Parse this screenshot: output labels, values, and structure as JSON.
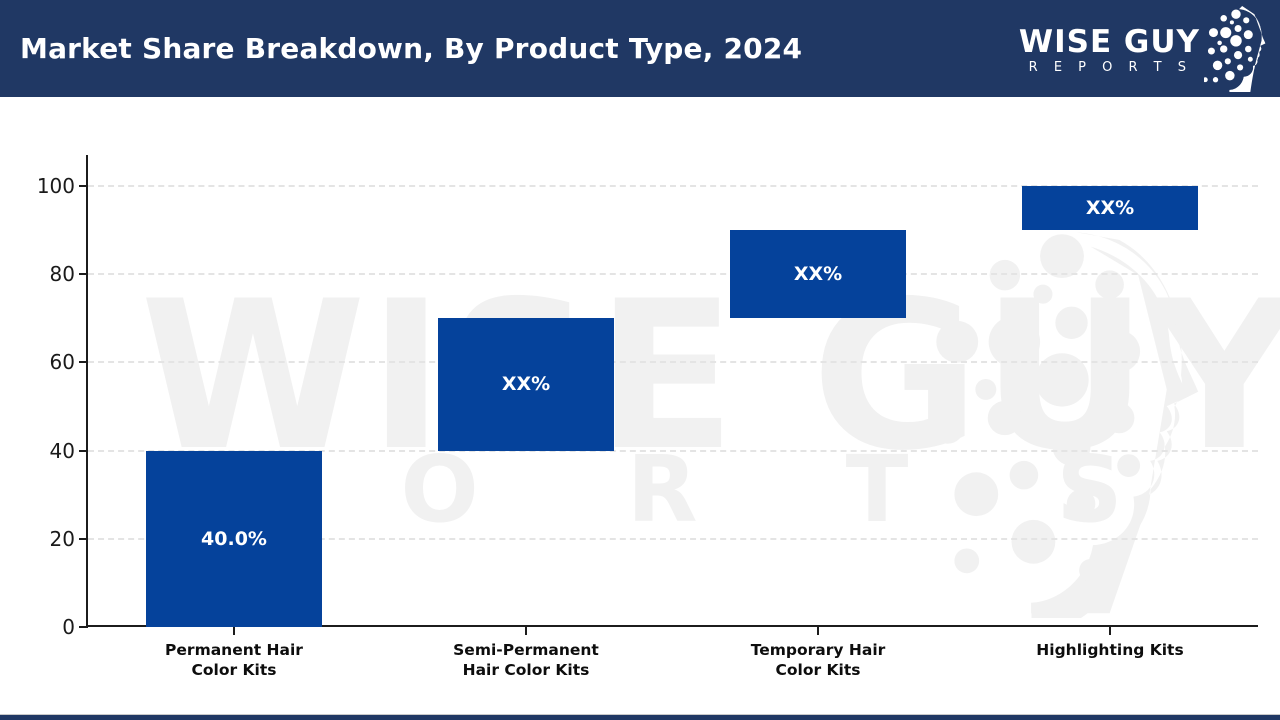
{
  "header": {
    "title": "Market Share Breakdown, By Product Type, 2024",
    "logo_line1": "WISE GUY",
    "logo_line2": "R E P O R T S"
  },
  "watermark": {
    "line1": "WISE GUY",
    "line2": "P O R T S"
  },
  "chart_data": {
    "type": "bar",
    "subtype": "waterfall",
    "title": "Market Share Breakdown, By Product Type, 2024",
    "categories": [
      "Permanent Hair Color Kits",
      "Semi-Permanent Hair Color Kits",
      "Temporary Hair Color Kits",
      "Highlighting Kits"
    ],
    "category_lines": [
      [
        "Permanent Hair",
        "Color Kits"
      ],
      [
        "Semi-Permanent",
        "Hair Color Kits"
      ],
      [
        "Temporary Hair",
        "Color Kits"
      ],
      [
        "Highlighting Kits"
      ]
    ],
    "segments": [
      {
        "label": "40.0%",
        "start": 0,
        "end": 40
      },
      {
        "label": "XX%",
        "start": 40,
        "end": 70
      },
      {
        "label": "XX%",
        "start": 70,
        "end": 90
      },
      {
        "label": "XX%",
        "start": 90,
        "end": 100
      }
    ],
    "yticks": [
      0,
      20,
      40,
      60,
      80,
      100
    ],
    "ylim": [
      0,
      100
    ],
    "xlabel": "",
    "ylabel": "",
    "grid": "horizontal-dashed",
    "legend": "none",
    "colors": {
      "bar": "#05429B",
      "header_bg": "#203864",
      "grid": "#e4e4e4",
      "axis": "#1c1c1c",
      "value_label": "#ffffff",
      "category_label": "#0d0d0d",
      "watermark": "#f1f1f1"
    }
  }
}
